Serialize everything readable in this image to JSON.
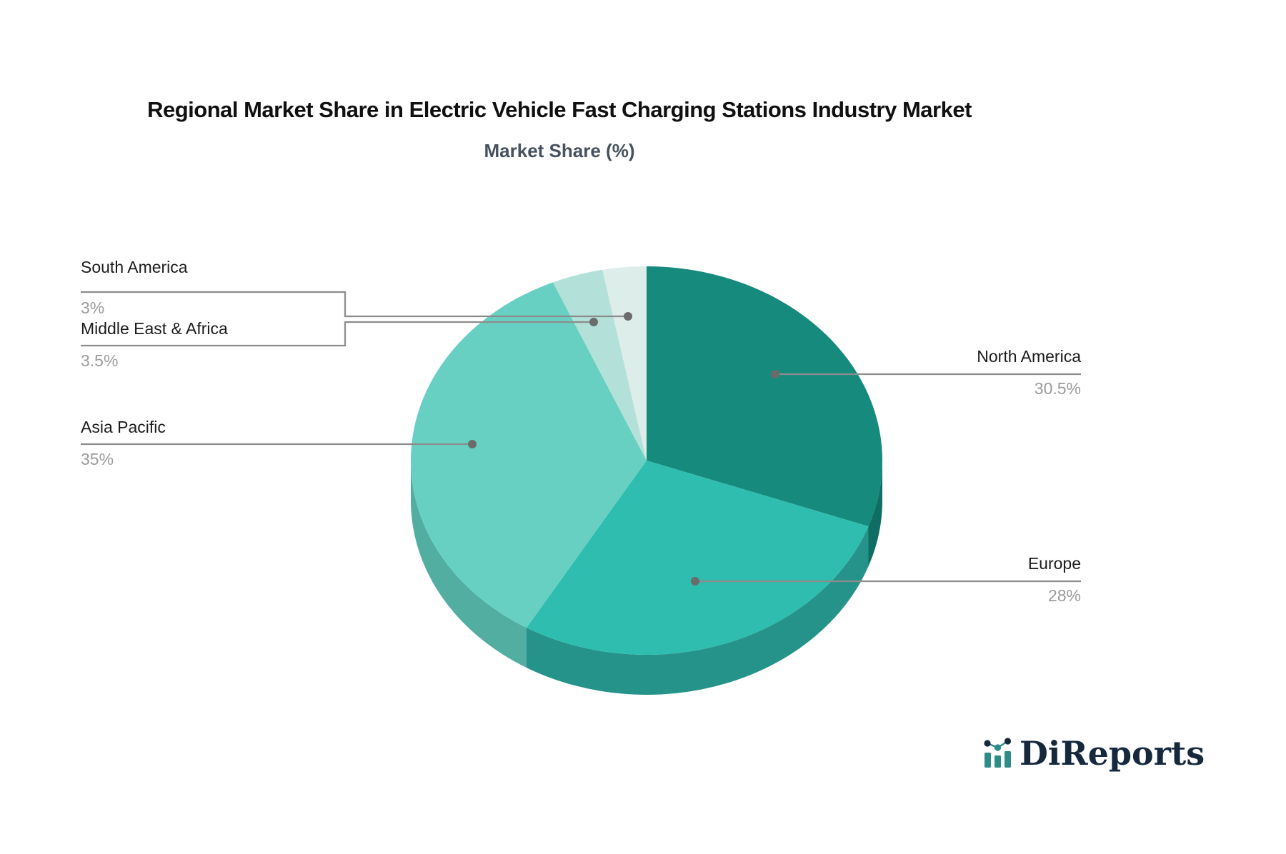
{
  "header": {
    "title": "Regional Market Share in Electric Vehicle Fast Charging Stations Industry Market",
    "subtitle": "Market Share (%)"
  },
  "chart_data": {
    "type": "pie",
    "title": "Regional Market Share in Electric Vehicle Fast Charging Stations Industry Market",
    "value_axis_label": "Market Share (%)",
    "unit": "%",
    "style": "3d-pie",
    "start_angle_deg": 90,
    "direction": "clockwise",
    "legend_position": "callout-labels",
    "slices": [
      {
        "label": "North America",
        "value": 30.5,
        "display": "30.5%",
        "color": "#178A7E",
        "side_color": "#0F6E63"
      },
      {
        "label": "Europe",
        "value": 28,
        "display": "28%",
        "color": "#2EBDAF",
        "side_color": "#26938A"
      },
      {
        "label": "Asia Pacific",
        "value": 35,
        "display": "35%",
        "color": "#67D0C3",
        "side_color": "#52AEA0"
      },
      {
        "label": "Middle East & Africa",
        "value": 3.5,
        "display": "3.5%",
        "color": "#B3E1DA",
        "side_color": "#9CCCC4"
      },
      {
        "label": "South America",
        "value": 3,
        "display": "3%",
        "color": "#DCEDEA",
        "side_color": "#C4D8D4"
      }
    ],
    "connector_color": "#8C8C8C",
    "dot_color": "#6B6B6B"
  },
  "logo": {
    "text": "DiReports",
    "bar_color": "#2D8C87",
    "dot_dark_color": "#16293C",
    "text_color": "#16293C"
  }
}
